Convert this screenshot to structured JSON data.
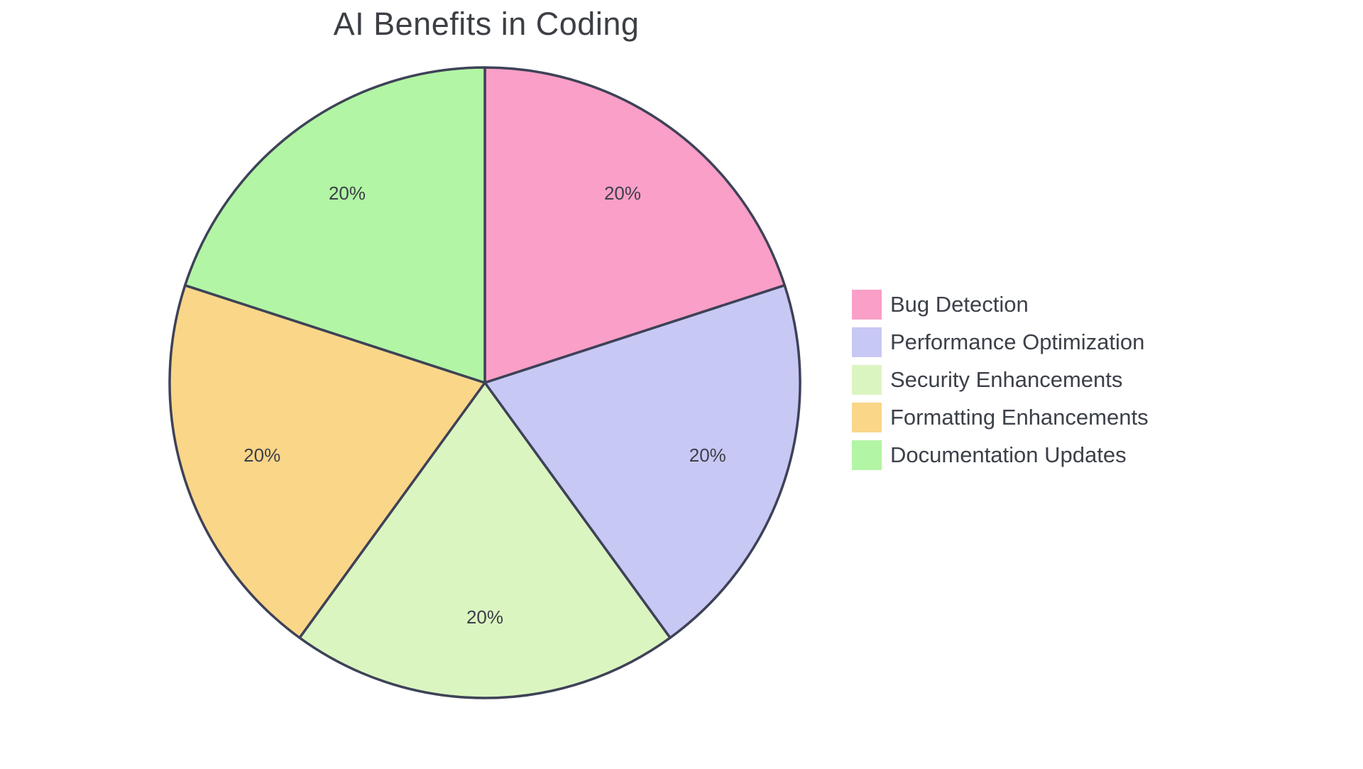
{
  "chart_data": {
    "type": "pie",
    "title": "AI Benefits in Coding",
    "labels": [
      "Bug Detection",
      "Performance Optimization",
      "Security Enhancements",
      "Formatting Enhancements",
      "Documentation Updates"
    ],
    "values": [
      20,
      20,
      20,
      20,
      20
    ],
    "slice_labels": [
      "20%",
      "20%",
      "20%",
      "20%",
      "20%"
    ],
    "colors": [
      "#FA9FC7",
      "#C8C8F4",
      "#DBF5C1",
      "#FAD689",
      "#B2F5A4"
    ],
    "slice_border_color": "#3E4257",
    "slice_border_width": 3.5,
    "label_text_color": "#3C4049",
    "title_color": "#3C3F45",
    "background_color": "#FFFFFF",
    "start_position": "12-oclock",
    "direction": "clockwise",
    "legend_position": "right"
  }
}
